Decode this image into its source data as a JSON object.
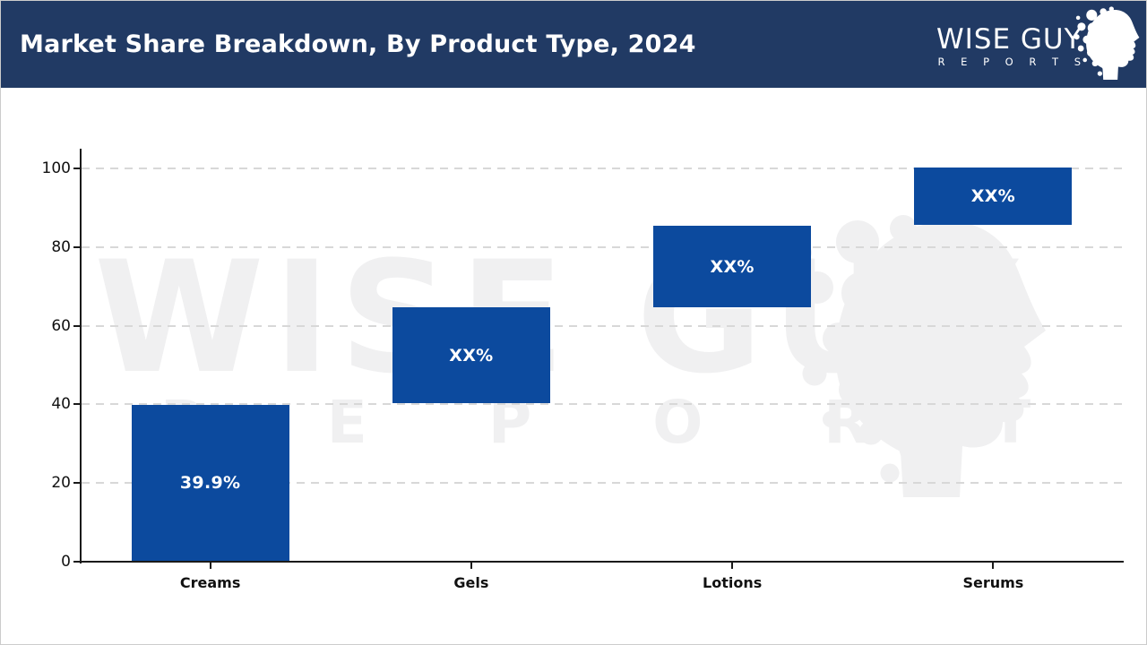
{
  "header": {
    "title": "Market Share Breakdown, By Product Type, 2024",
    "logo": {
      "line1": "WISE GUY",
      "line2": "R E P O R T S"
    }
  },
  "watermark": {
    "line1": "WISE GUY",
    "line2": "R E P O R T S"
  },
  "colors": {
    "header_bg": "#213a64",
    "bar_fill": "#0c4a9e",
    "watermark_gray": "#f0f0f1",
    "gridline_gray": "#d8d8d8",
    "axis_black": "#1a1a1a",
    "tick_text": "#111111",
    "bar_label_white": "#ffffff",
    "title_white": "#ffffff"
  },
  "chart_data": {
    "type": "bar",
    "subtype": "waterfall",
    "title": "Market Share Breakdown, By Product Type, 2024",
    "categories": [
      "Creams",
      "Gels",
      "Lotions",
      "Serums"
    ],
    "bars": [
      {
        "category": "Creams",
        "start": 0,
        "end": 39.9,
        "label": "39.9%"
      },
      {
        "category": "Gels",
        "start": 40.4,
        "end": 64.6,
        "label": "XX%"
      },
      {
        "category": "Lotions",
        "start": 64.6,
        "end": 85.5,
        "label": "XX%"
      },
      {
        "category": "Serums",
        "start": 85.7,
        "end": 100.3,
        "label": "XX%"
      }
    ],
    "yticks": [
      0,
      20,
      40,
      60,
      80,
      100
    ],
    "ylim": [
      0,
      105
    ],
    "xlabel": "",
    "ylabel": "",
    "grid": "horizontal-dashed",
    "legend": "none",
    "bar_value_position": "center"
  }
}
